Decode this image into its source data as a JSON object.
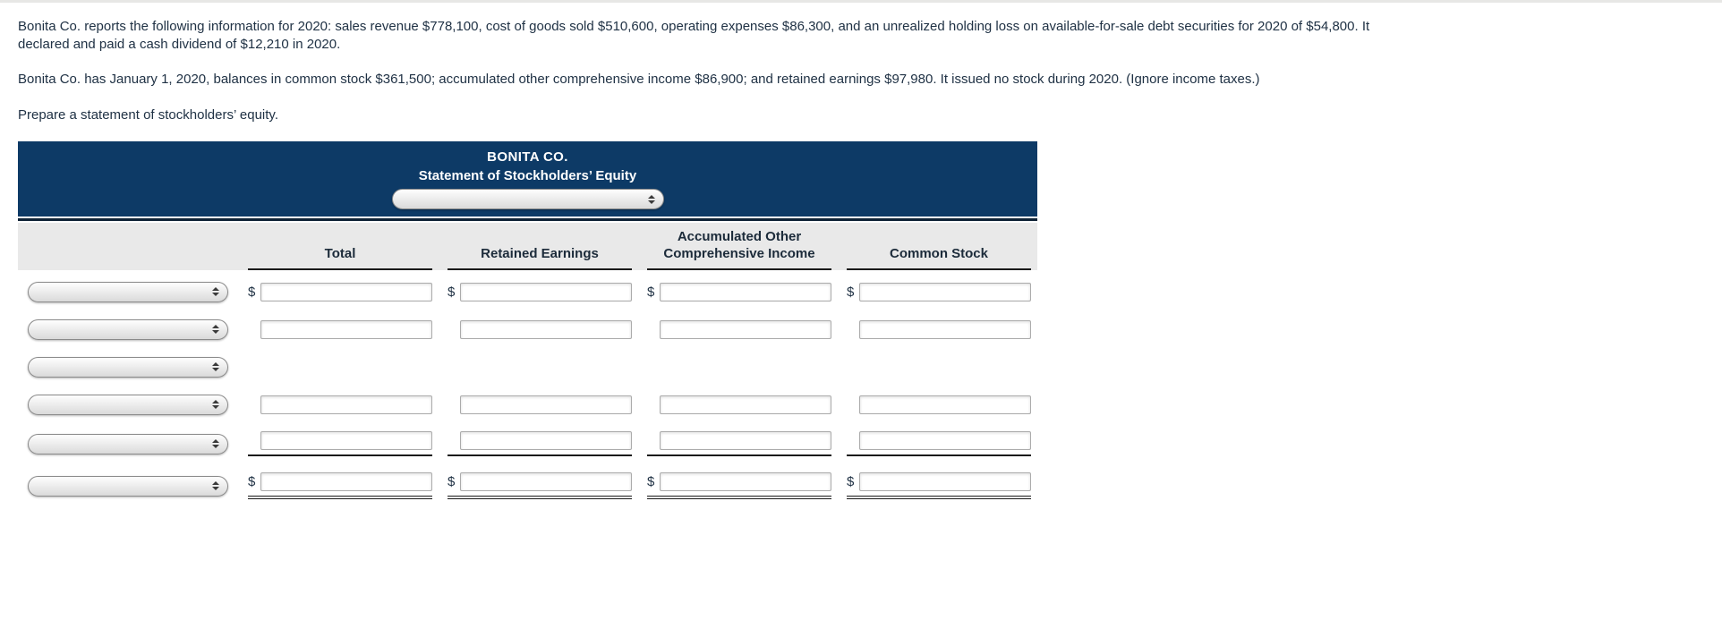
{
  "colors": {
    "header_navy": "#0d3a66",
    "band_gray": "#e9e9e9",
    "text": "#203245",
    "rule_black": "#1a1a1a"
  },
  "problem": {
    "paragraph1": "Bonita Co. reports the following information for 2020: sales revenue $778,100, cost of goods sold $510,600, operating expenses $86,300, and an unrealized holding loss on available-for-sale debt securities for 2020 of $54,800. It declared and paid a cash dividend of $12,210 in 2020.",
    "paragraph2": "Bonita Co. has January 1, 2020, balances in common stock $361,500; accumulated other comprehensive income $86,900; and retained earnings $97,980. It issued no stock during 2020. (Ignore income taxes.)",
    "instruction": "Prepare a statement of stockholders’ equity."
  },
  "statement": {
    "company": "BONITA CO.",
    "title": "Statement of Stockholders’ Equity",
    "period_select_value": "",
    "columns": [
      "Total",
      "Retained Earnings",
      "Accumulated Other Comprehensive Income",
      "Common Stock"
    ],
    "rows": [
      {
        "label_select_value": "",
        "dollar_prefix": "$",
        "inputs": [
          "",
          "",
          "",
          ""
        ]
      },
      {
        "label_select_value": "",
        "dollar_prefix": "",
        "inputs": [
          "",
          "",
          "",
          ""
        ]
      },
      {
        "label_select_value": "",
        "dollar_prefix": "",
        "inputs": []
      },
      {
        "label_select_value": "",
        "dollar_prefix": "",
        "inputs": [
          "",
          "",
          "",
          ""
        ]
      },
      {
        "label_select_value": "",
        "dollar_prefix": "",
        "inputs": [
          "",
          "",
          "",
          ""
        ]
      },
      {
        "label_select_value": "",
        "dollar_prefix": "$",
        "inputs": [
          "",
          "",
          "",
          ""
        ]
      }
    ]
  }
}
